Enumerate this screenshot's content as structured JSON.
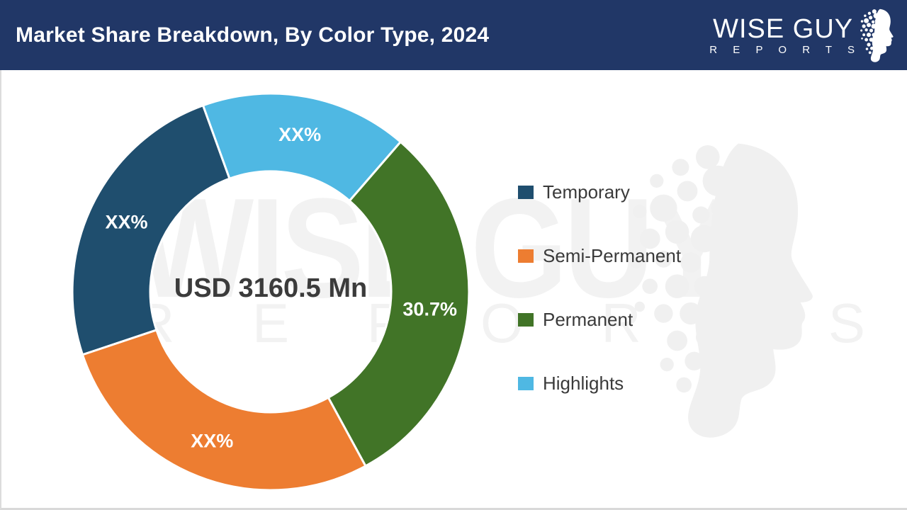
{
  "header": {
    "title": "Market Share Breakdown, By Color Type, 2024",
    "bg_color": "#213767",
    "logo": {
      "line1": "WISE GUY",
      "line2": "R E P O R T S"
    }
  },
  "watermark": {
    "line1": "WISE GUY",
    "line2": "R E P O R T S"
  },
  "chart_data": {
    "type": "pie",
    "subtype": "donut",
    "title": "Market Share Breakdown, By Color Type, 2024",
    "center_label": "USD 3160.5 Mn",
    "units": "percent of market share",
    "start_angle_deg": 251.5,
    "direction": "clockwise",
    "inner_radius_ratio": 0.61,
    "legend_position": "right",
    "segments": [
      {
        "name": "Temporary",
        "value_pct": 24.6,
        "value_masked": true,
        "label": "XX%",
        "color": "#1f4e6e"
      },
      {
        "name": "Highlights",
        "value_pct": 16.9,
        "value_masked": true,
        "label": "XX%",
        "color": "#4fb8e3"
      },
      {
        "name": "Permanent",
        "value_pct": 30.7,
        "value_masked": false,
        "label": "30.7%",
        "color": "#417427"
      },
      {
        "name": "Semi-Permanent",
        "value_pct": 27.8,
        "value_masked": true,
        "label": "XX%",
        "color": "#ed7d31"
      }
    ],
    "legend": [
      {
        "label": "Temporary",
        "color": "#1f4e6e"
      },
      {
        "label": "Semi-Permanent",
        "color": "#ed7d31"
      },
      {
        "label": "Permanent",
        "color": "#417427"
      },
      {
        "label": "Highlights",
        "color": "#4fb8e3"
      }
    ]
  }
}
